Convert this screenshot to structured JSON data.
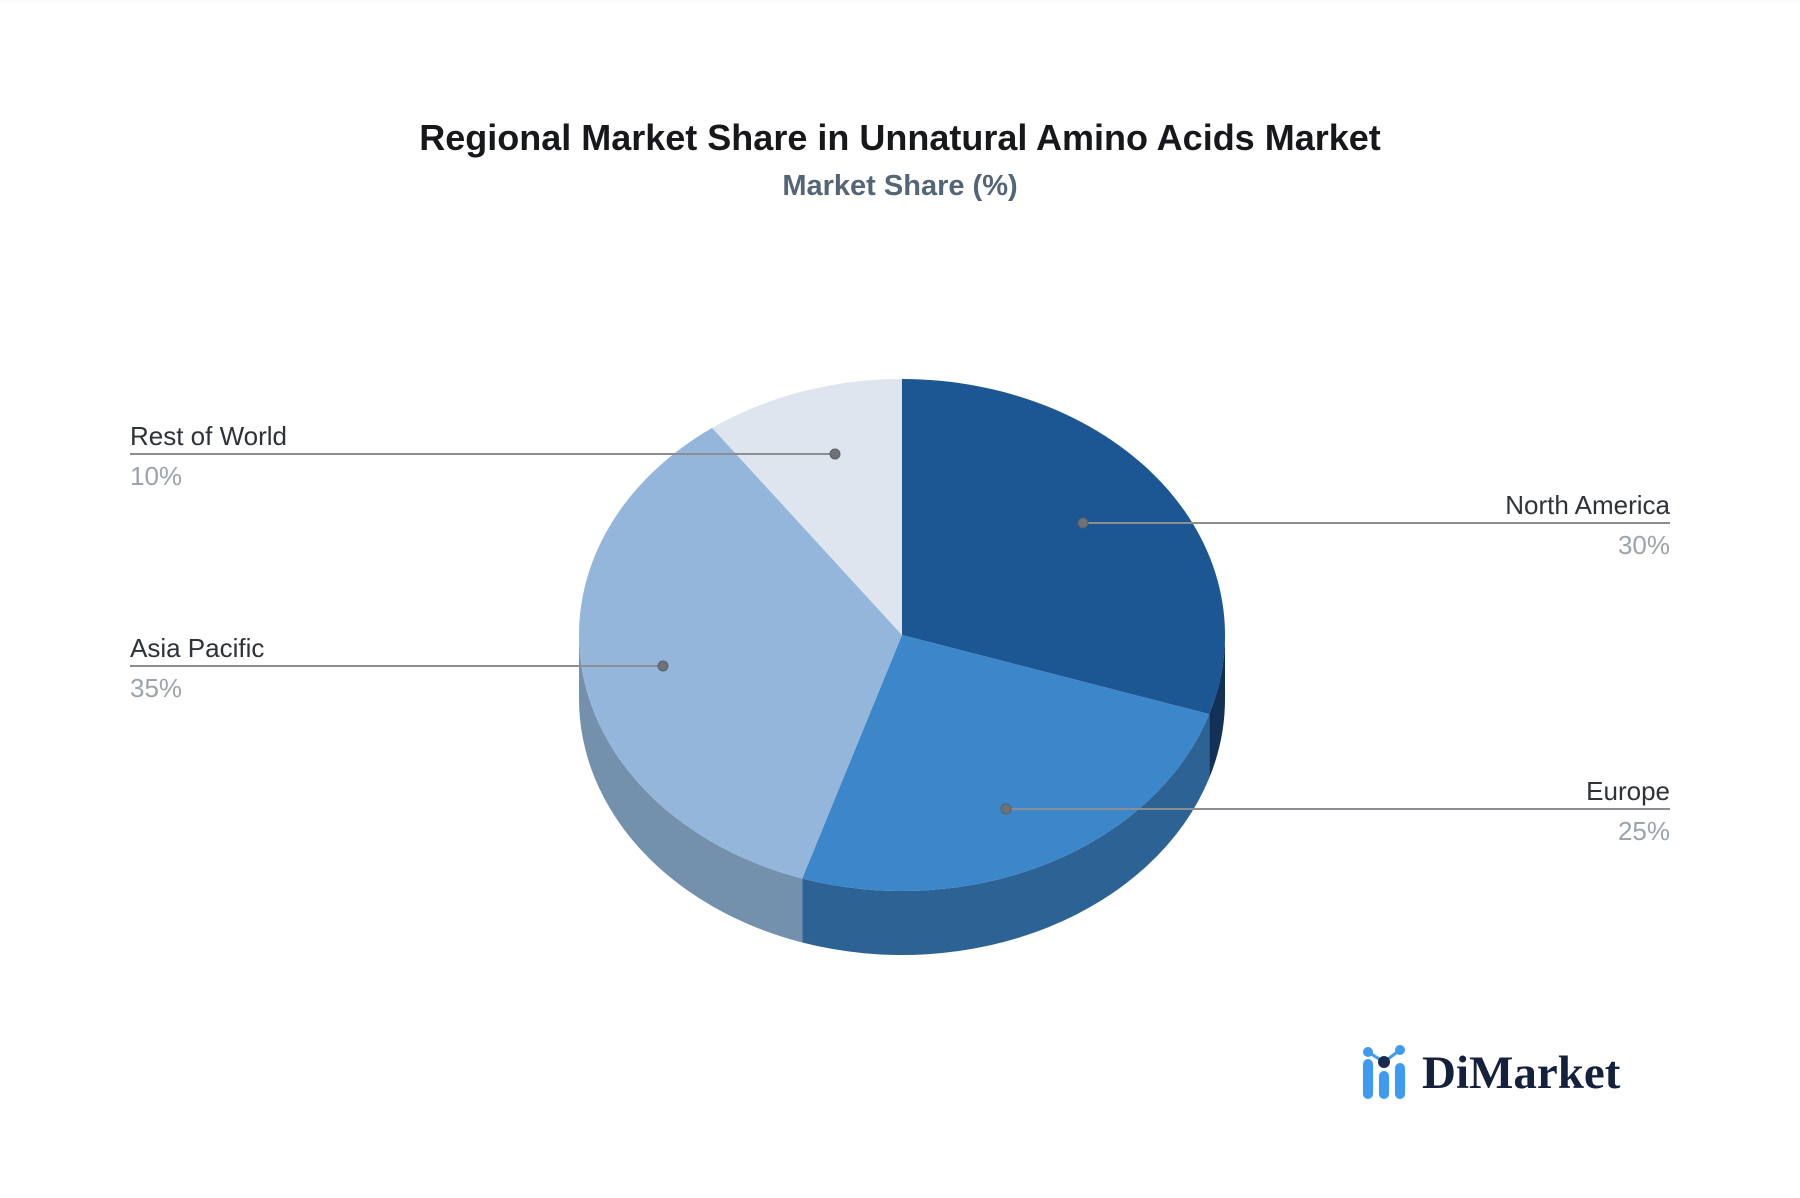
{
  "title": "Regional Market Share in Unnatural Amino Acids Market",
  "subtitle": "Market Share (%)",
  "chart_data": {
    "type": "pie",
    "title": "Regional Market Share in Unnatural Amino Acids Market",
    "subtitle": "Market Share (%)",
    "unit": "%",
    "start_angle_deg": 0,
    "direction": "clockwise",
    "effect": "3d-depth",
    "legend_position": "callout-labels",
    "slices": [
      {
        "label": "North America",
        "value": 30,
        "pct_label": "30%",
        "color": "#1c5794",
        "side_color": "#133057"
      },
      {
        "label": "Europe",
        "value": 25,
        "pct_label": "25%",
        "color": "#3c87c9",
        "side_color": "#2d6394"
      },
      {
        "label": "Asia Pacific",
        "value": 35,
        "pct_label": "35%",
        "color": "#94b6db",
        "side_color": "#7390ad"
      },
      {
        "label": "Rest of World",
        "value": 10,
        "pct_label": "10%",
        "color": "#dfe5ee",
        "side_color": "#b9c4d4"
      }
    ]
  },
  "colors": {
    "background": "#ffffff",
    "title_text": "#16181b",
    "subtitle_text": "#536577",
    "label_text": "#2e3338",
    "pct_text": "#9ba3ab",
    "leader_line": "#8a8e92",
    "leader_dot": "#6e7276",
    "logo_text": "#15203c",
    "logo_accent": "#3f9bf1",
    "logo_navy": "#1c2b4d"
  },
  "logo": {
    "text": "DiMarket"
  }
}
